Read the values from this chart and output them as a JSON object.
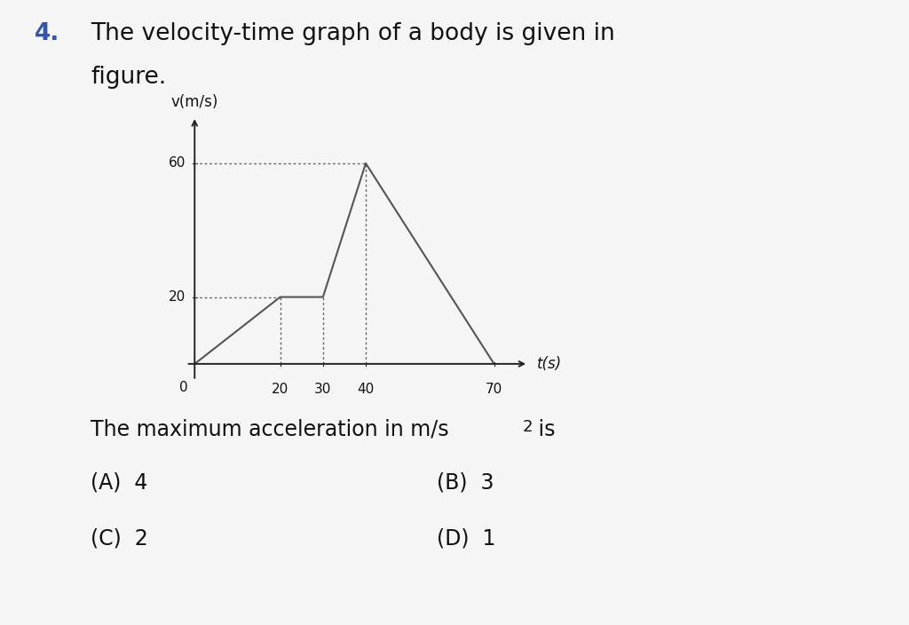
{
  "question_number": "4.",
  "question_line1": "The velocity-time graph of a body is given in",
  "question_line2": "figure.",
  "graph_t": [
    0,
    20,
    30,
    40,
    70
  ],
  "graph_v": [
    0,
    20,
    20,
    60,
    0
  ],
  "xlabel": "t(s)",
  "ylabel": "v(m/s)",
  "xtick_vals": [
    20,
    30,
    40,
    70
  ],
  "ytick_vals": [
    20,
    60
  ],
  "xlim": [
    -3,
    82
  ],
  "ylim": [
    -8,
    78
  ],
  "dashed_h_lines": [
    {
      "y": 20,
      "x_start": 0,
      "x_end": 20
    },
    {
      "y": 60,
      "x_start": 0,
      "x_end": 40
    }
  ],
  "dashed_v_lines": [
    {
      "x": 20,
      "y_start": 0,
      "y_end": 20
    },
    {
      "x": 30,
      "y_start": 0,
      "y_end": 20
    },
    {
      "x": 40,
      "y_start": 0,
      "y_end": 60
    }
  ],
  "line_color": "#555555",
  "dashed_color": "#666666",
  "bg_color": "#f5f5f5",
  "answer_text": "The maximum acceleration in m/s",
  "superscript": "2",
  "answer_suffix": " is",
  "options_col0": [
    "(A)  4",
    "(C)  2"
  ],
  "options_col1": [
    "(B)  3",
    "(D)  1"
  ],
  "font_size_question": 19,
  "font_size_answer": 17,
  "font_size_options": 17,
  "font_size_axis_labels": 12,
  "font_size_tick_labels": 11
}
